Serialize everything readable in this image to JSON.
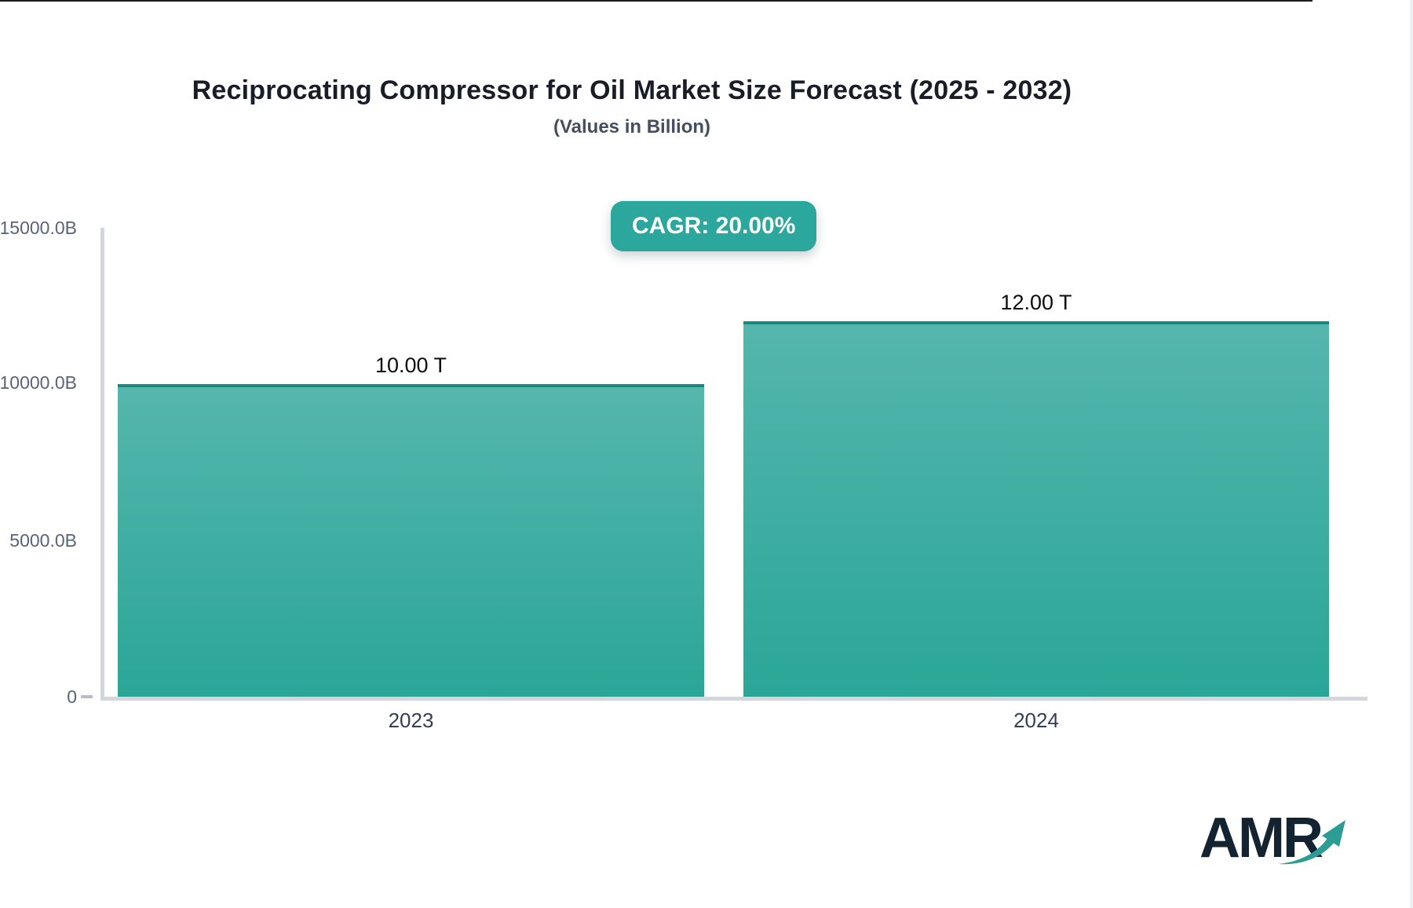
{
  "chart_data": {
    "type": "bar",
    "title": "Reciprocating Compressor for Oil Market Size Forecast (2025 - 2032)",
    "subtitle": "(Values in Billion)",
    "badge": "CAGR: 20.00%",
    "categories": [
      "2023",
      "2024"
    ],
    "values": [
      10000,
      12000
    ],
    "value_labels": [
      "10.00 T",
      "12.00 T"
    ],
    "unit": "B",
    "ylim": [
      0,
      15000
    ],
    "ytick_values": [
      15000,
      10000,
      5000,
      0
    ],
    "ytick_labels": [
      "15000.0B",
      "10000.0B",
      "5000.0B",
      "0"
    ],
    "grid": "off",
    "legend": "none",
    "colors": {
      "bar_gradient_top": "#55b6ad",
      "bar_gradient_bottom": "#2aa697",
      "bar_top_stripe": "#17897f",
      "badge_bg": "#2ba79d",
      "badge_text": "#ffffff",
      "axis_line": "#d3d6dc",
      "title_text": "#191d27",
      "subtitle_text": "#454e60",
      "tick_text": "#59637a",
      "category_text": "#323e59",
      "value_text": "#0c0c0e"
    }
  },
  "logo": {
    "text": "AMR",
    "text_color": "#132430",
    "arrow_color": "#2d9c94"
  }
}
